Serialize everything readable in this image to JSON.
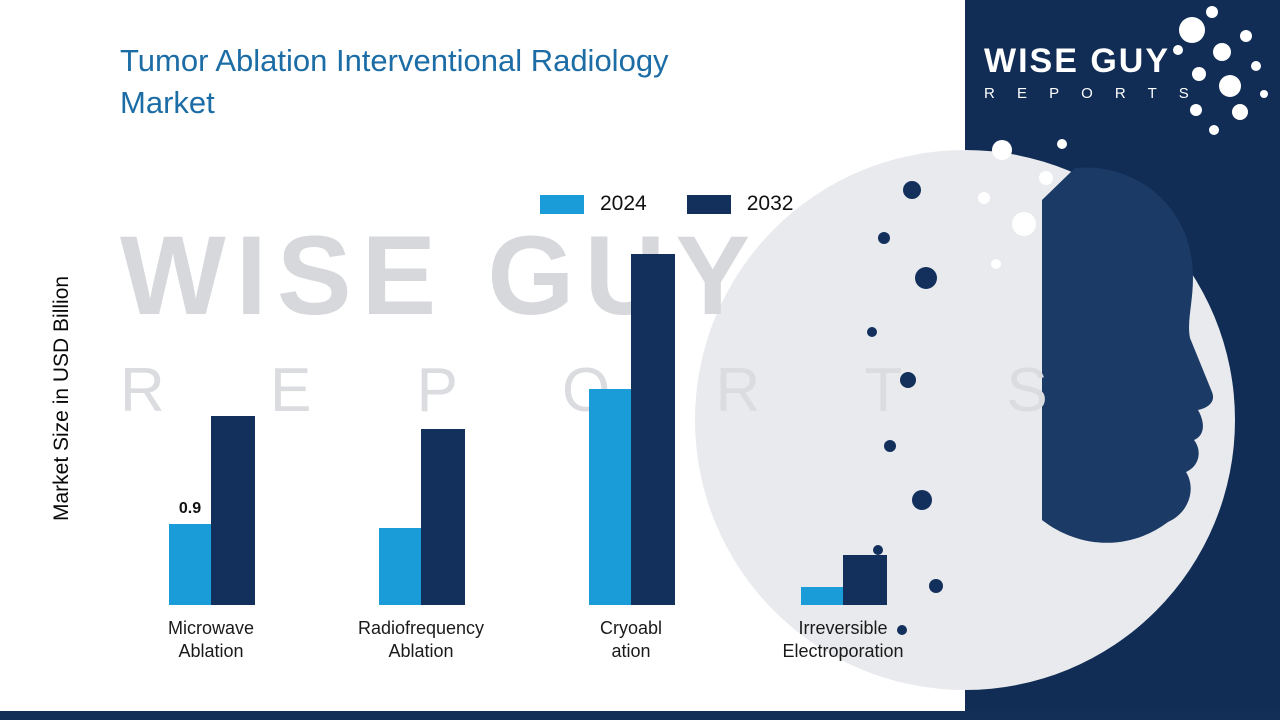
{
  "title": "Tumor Ablation Interventional Radiology Market",
  "logo": {
    "line1": "WISE GUY",
    "line2": "R E P O R T S"
  },
  "watermark": {
    "line1": "WISE GUY",
    "line2": "R E P O R T S"
  },
  "colors": {
    "accent_blue": "#1a9cd9",
    "navy": "#13305c",
    "title_blue": "#1c6da6",
    "watermark_gray": "#d6d8db",
    "panel_navy": "#112d56"
  },
  "chart_data": {
    "type": "bar",
    "title": "Tumor Ablation Interventional Radiology Market",
    "ylabel": "Market Size in USD Billion",
    "xlabel": "",
    "ylim": [
      0,
      4.2
    ],
    "grid": false,
    "legend_position": "top",
    "categories": [
      "Microwave Ablation",
      "Radiofrequency Ablation",
      "Cryoablation",
      "Irreversible Electroporation"
    ],
    "category_display_lines": [
      [
        "Microwave",
        "Ablation"
      ],
      [
        "Radiofrequency",
        "Ablation"
      ],
      [
        "Cryoabl",
        "ation"
      ],
      [
        "Irreversible",
        "Electroporation"
      ]
    ],
    "series": [
      {
        "name": "2024",
        "color": "#1a9cd9",
        "values": [
          0.9,
          0.85,
          2.4,
          0.2
        ]
      },
      {
        "name": "2032",
        "color": "#13305c",
        "values": [
          2.1,
          1.95,
          3.9,
          0.55
        ]
      }
    ],
    "annotations": [
      {
        "category_index": 0,
        "series_index": 0,
        "text": "0.9"
      }
    ]
  }
}
